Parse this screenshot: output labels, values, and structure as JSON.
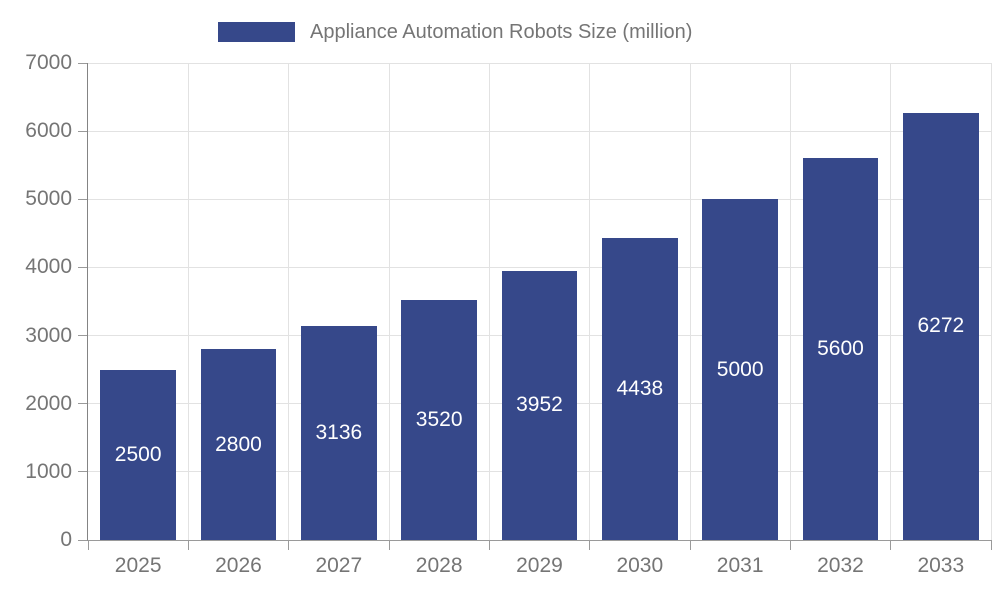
{
  "chart_data": {
    "type": "bar",
    "title": "Appliance Automation Robots Size (million)",
    "categories": [
      "2025",
      "2026",
      "2027",
      "2028",
      "2029",
      "2030",
      "2031",
      "2032",
      "2033"
    ],
    "series": [
      {
        "name": "Appliance Automation Robots Size (million)",
        "values": [
          2500,
          2800,
          3136,
          3520,
          3952,
          4438,
          5000,
          5600,
          6272
        ],
        "color": "#36488A"
      }
    ],
    "bar_value_labels": [
      "2500",
      "2800",
      "3136",
      "3520",
      "3952",
      "4438",
      "5000",
      "5600",
      "6272"
    ],
    "xlabel": "",
    "ylabel": "",
    "ylim": [
      0,
      7000
    ],
    "ytick_step": 1000,
    "yticks": [
      "0",
      "1000",
      "2000",
      "3000",
      "4000",
      "5000",
      "6000",
      "7000"
    ],
    "grid": "on",
    "legend_position": "top",
    "value_labels_inside_bars": true,
    "colors": {
      "bar": "#36488A",
      "bar_label_text": "#ffffff",
      "axis_text": "#757575",
      "grid_line": "#e2e2e2",
      "axis_line": "#9a9a9a"
    }
  }
}
